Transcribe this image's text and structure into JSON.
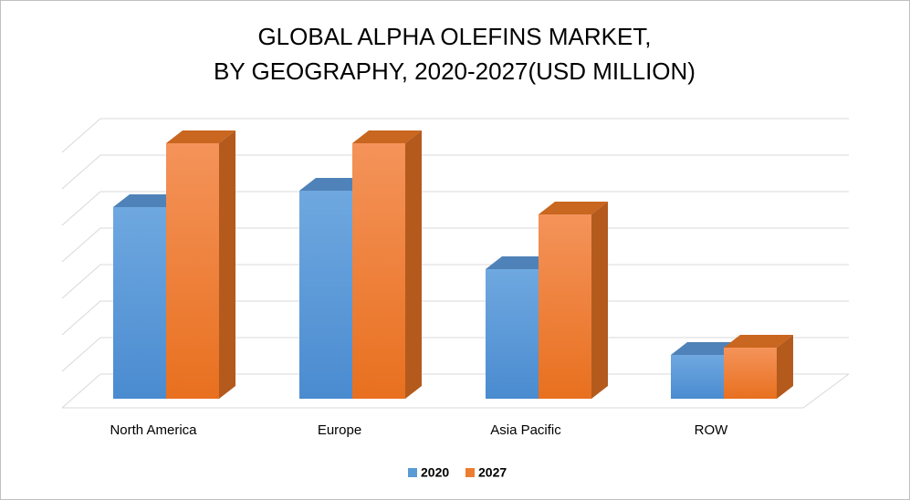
{
  "chart_data": {
    "type": "bar",
    "title": [
      "GLOBAL ALPHA OLEFINS MARKET,",
      "BY GEOGRAPHY, 2020-2027(USD MILLION)"
    ],
    "categories": [
      "North America",
      "Europe",
      "Asia Pacific",
      "ROW"
    ],
    "series": [
      {
        "name": "2020",
        "color": "#5b9bd5",
        "values": [
          5.25,
          5.7,
          3.55,
          1.2
        ]
      },
      {
        "name": "2027",
        "color": "#ed7d31",
        "values": [
          7.0,
          7.0,
          5.05,
          1.4
        ]
      }
    ],
    "ylim": [
      0,
      7
    ],
    "grid": true
  }
}
